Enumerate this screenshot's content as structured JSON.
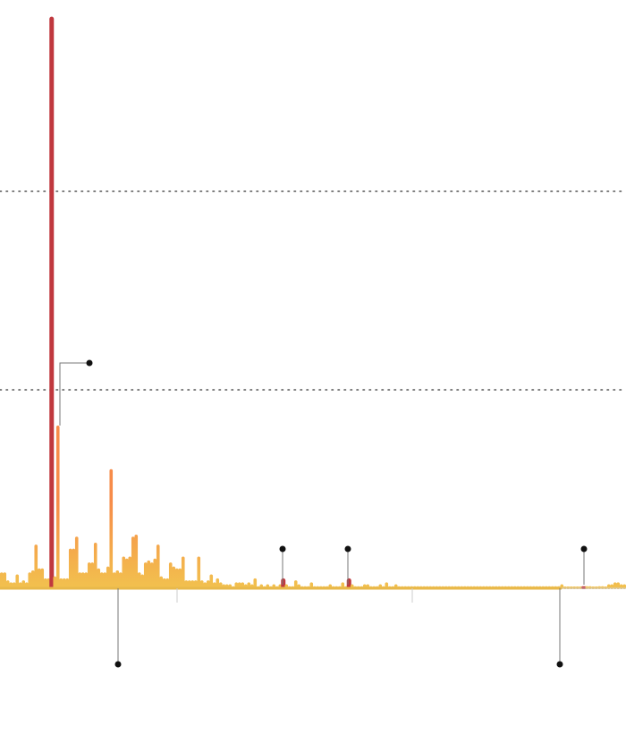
{
  "chart_data": {
    "type": "bar",
    "title": "",
    "xlabel": "",
    "ylabel": "",
    "ylim": [
      0,
      2.9
    ],
    "grid": {
      "horizontal": true,
      "values": [
        1,
        2
      ],
      "style": "dotted"
    },
    "legend": "none",
    "colors": {
      "low": "#f2c14e",
      "high": "#f78c4a",
      "highlight": "#c0383e",
      "annotation": "#111111"
    },
    "highlighted_indices": [
      16,
      90,
      111,
      186
    ],
    "values": [
      0.08,
      0.08,
      0.04,
      0.03,
      0.03,
      0.07,
      0.03,
      0.04,
      0.03,
      0.08,
      0.09,
      0.22,
      0.1,
      0.1,
      0.05,
      0.05,
      2.88,
      0.06,
      0.82,
      0.05,
      0.05,
      0.05,
      0.2,
      0.2,
      0.26,
      0.08,
      0.08,
      0.08,
      0.13,
      0.13,
      0.23,
      0.1,
      0.08,
      0.08,
      0.11,
      0.6,
      0.08,
      0.09,
      0.08,
      0.16,
      0.15,
      0.16,
      0.26,
      0.27,
      0.08,
      0.07,
      0.13,
      0.14,
      0.13,
      0.15,
      0.22,
      0.06,
      0.05,
      0.05,
      0.13,
      0.11,
      0.1,
      0.1,
      0.16,
      0.04,
      0.04,
      0.04,
      0.04,
      0.16,
      0.04,
      0.03,
      0.04,
      0.07,
      0.03,
      0.05,
      0.03,
      0.02,
      0.02,
      0.02,
      0.01,
      0.03,
      0.03,
      0.03,
      0.02,
      0.03,
      0.02,
      0.05,
      0.01,
      0.02,
      0.01,
      0.02,
      0.01,
      0.02,
      0.01,
      0.02,
      0.05,
      0.02,
      0.01,
      0.01,
      0.04,
      0.02,
      0.01,
      0.01,
      0.01,
      0.03,
      0.01,
      0.01,
      0.01,
      0.01,
      0.01,
      0.02,
      0.01,
      0.01,
      0.01,
      0.03,
      0.01,
      0.05,
      0.02,
      0.01,
      0.01,
      0.01,
      0.02,
      0.02,
      0.01,
      0.01,
      0.01,
      0.02,
      0.01,
      0.03,
      0.01,
      0.01,
      0.02,
      0.01,
      0.01,
      0.01,
      0.01,
      0.01,
      0.01,
      0.01,
      0.01,
      0.01,
      0.01,
      0.01,
      0.01,
      0.01,
      0.01,
      0.01,
      0.01,
      0.01,
      0.01,
      0.01,
      0.01,
      0.01,
      0.01,
      0.01,
      0.01,
      0.01,
      0.01,
      0.01,
      0.01,
      0.01,
      0.01,
      0.01,
      0.01,
      0.01,
      0.01,
      0.01,
      0.01,
      0.01,
      0.01,
      0.01,
      0.01,
      0.01,
      0.01,
      0.01,
      0.01,
      0.01,
      0.01,
      0.01,
      0.01,
      0.01,
      0.01,
      0.01,
      0.01,
      0.02,
      0.0,
      0.0,
      0.0,
      0.0,
      0.0,
      0.0,
      0.01,
      0.01,
      0.01,
      0.0,
      0.0,
      0.01,
      0.01,
      0.0,
      0.02,
      0.02,
      0.03,
      0.03,
      0.02,
      0.02
    ]
  }
}
